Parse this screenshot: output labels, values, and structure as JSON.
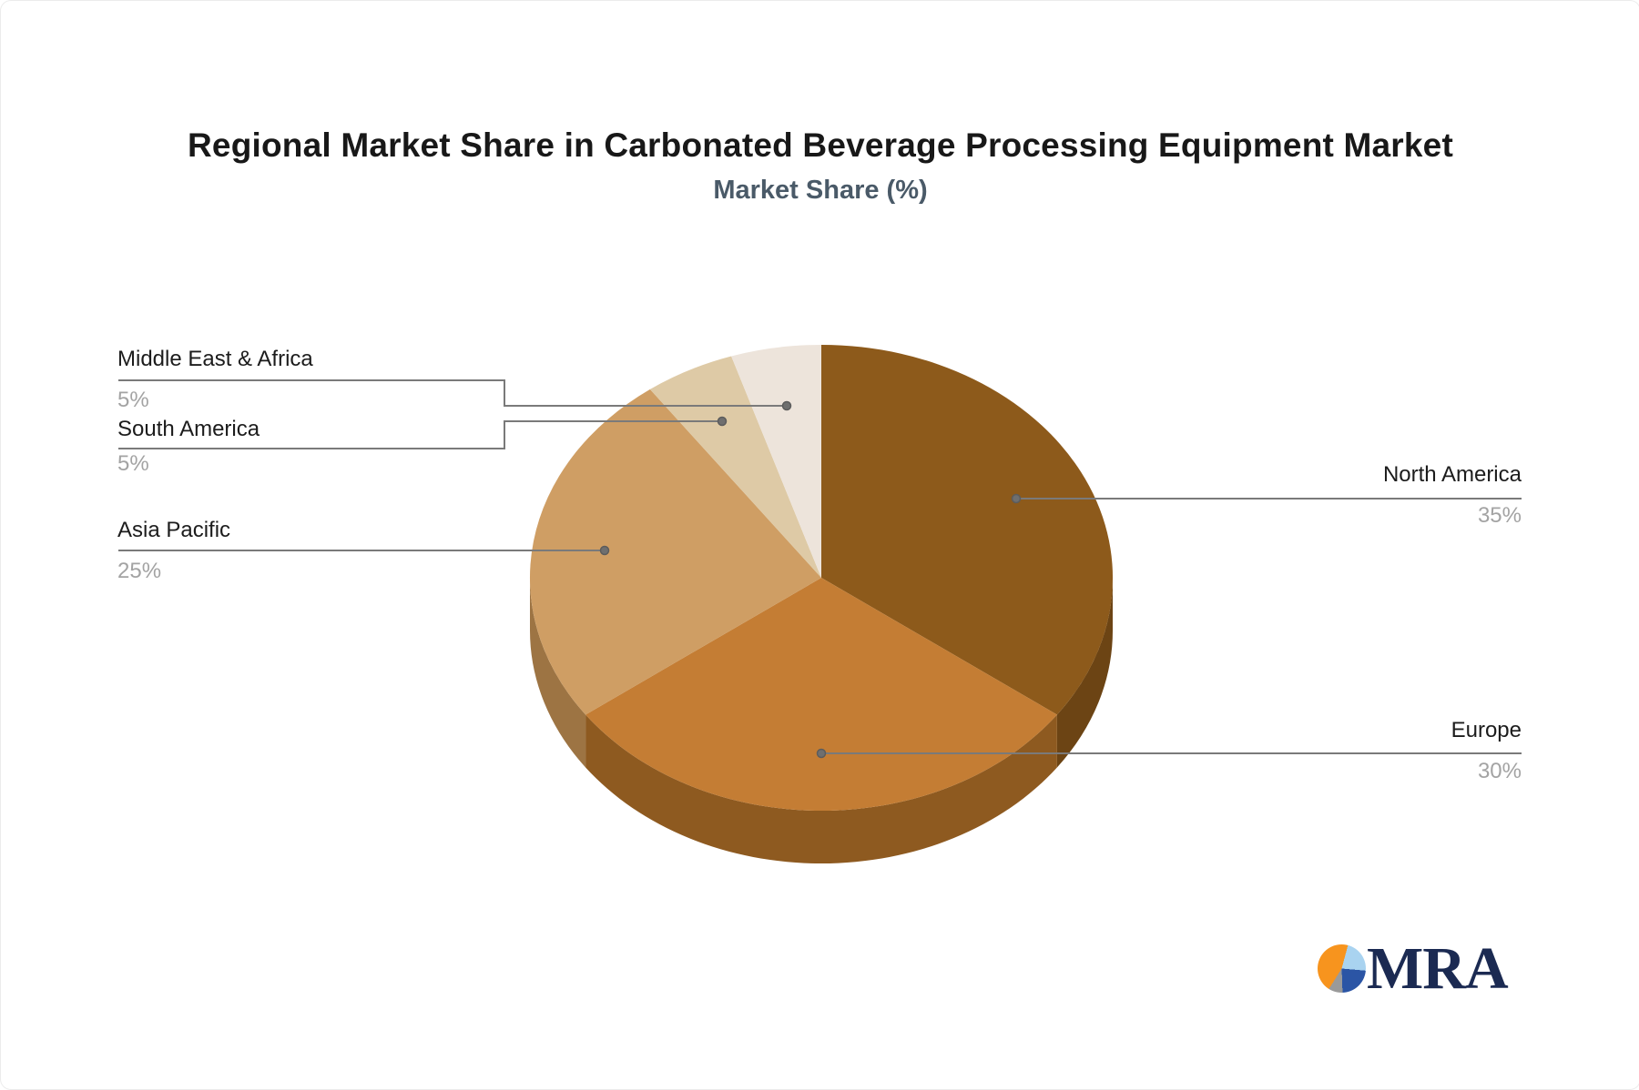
{
  "title": "Regional Market Share in Carbonated Beverage Processing Equipment Market",
  "subtitle": "Market Share (%)",
  "chart_data": {
    "type": "pie",
    "style": "3d-pie",
    "title": "Regional Market Share in Carbonated Beverage Processing Equipment Market",
    "subtitle": "Market Share (%)",
    "unit": "%",
    "start_angle_deg": 0,
    "direction": "clockwise",
    "legend_position": "none",
    "data_labels": "leader-lines with category name and percentage",
    "slices": [
      {
        "label": "North America",
        "value": 35,
        "pct_label": "35%",
        "color": "#8d5a1b",
        "side_color": "#6c4414"
      },
      {
        "label": "Europe",
        "value": 30,
        "pct_label": "30%",
        "color": "#c47d34",
        "side_color": "#8e5a20"
      },
      {
        "label": "Asia Pacific",
        "value": 25,
        "pct_label": "25%",
        "color": "#cf9e64",
        "side_color": "#9d7443"
      },
      {
        "label": "South America",
        "value": 5,
        "pct_label": "5%",
        "color": "#decaa6",
        "side_color": "#ab9578"
      },
      {
        "label": "Middle East & Africa",
        "value": 5,
        "pct_label": "5%",
        "color": "#ede4db",
        "side_color": "#bcb1a7"
      }
    ],
    "colors": {
      "connector_line": "#7a7a7a",
      "connector_dot": "#6f6f6f",
      "label_text": "#1c1c1c",
      "percent_text": "#a3a3a3",
      "title_text": "#181818",
      "subtitle_text": "#4a5a68"
    }
  },
  "logo": {
    "text": "MRA",
    "icon": "pie-chart-logo-icon",
    "text_color": "#1b2a52",
    "icon_colors": [
      "#f7941e",
      "#a9d3f0",
      "#2b55a5",
      "#9a9a9a"
    ]
  }
}
